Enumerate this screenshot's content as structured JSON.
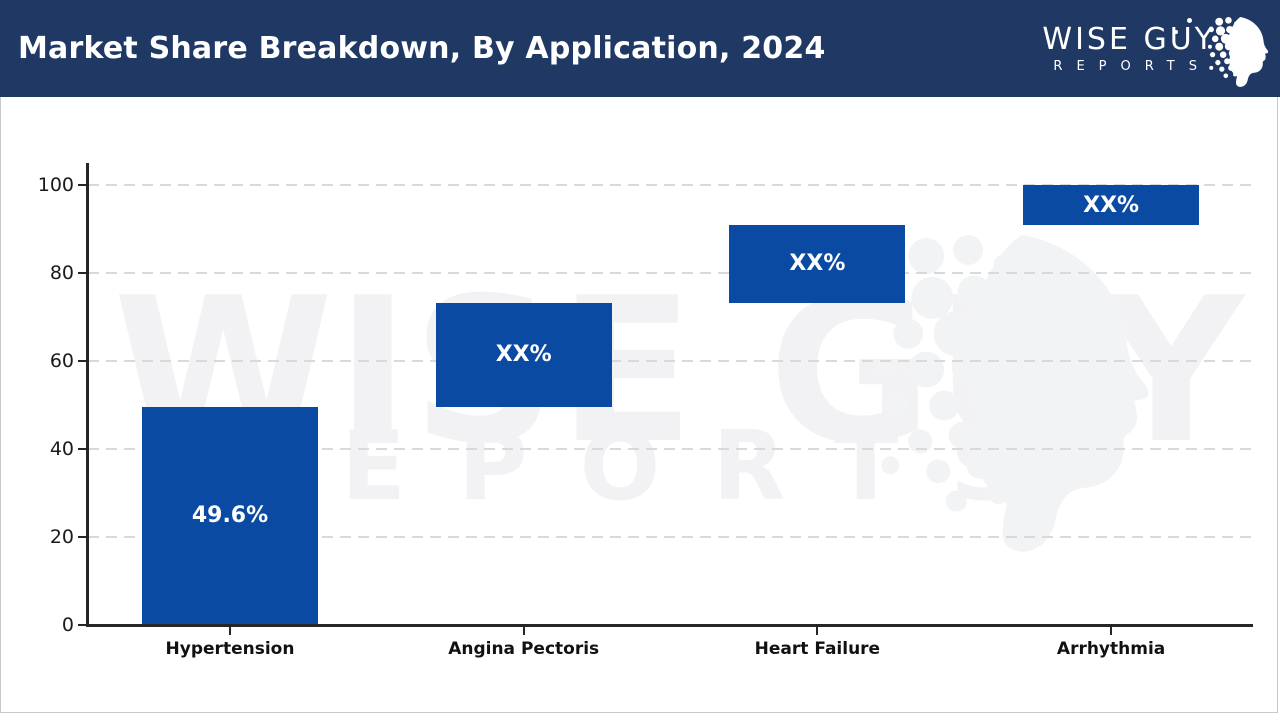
{
  "header": {
    "title": "Market Share Breakdown, By Application, 2024",
    "bg_color": "#1f3864",
    "logo": {
      "brand_top": "WISE GUY",
      "brand_bottom": "REPORTS"
    }
  },
  "watermark": {
    "text_top": "WISE GUY",
    "text_bottom": "REPORTS"
  },
  "chart_data": {
    "type": "bar",
    "subtype": "waterfall",
    "title": "Market Share Breakdown, By Application, 2024",
    "categories": [
      "Hypertension",
      "Angina Pectoris",
      "Heart Failure",
      "Arrhythmia"
    ],
    "segments": [
      {
        "category": "Hypertension",
        "start": 0,
        "end": 49.6,
        "label": "49.6%"
      },
      {
        "category": "Angina Pectoris",
        "start": 49.6,
        "end": 73.2,
        "label": "XX%"
      },
      {
        "category": "Heart Failure",
        "start": 73.2,
        "end": 90.9,
        "label": "XX%"
      },
      {
        "category": "Arrhythmia",
        "start": 90.9,
        "end": 100,
        "label": "XX%"
      }
    ],
    "ylim": [
      0,
      105
    ],
    "yticks": [
      0,
      20,
      40,
      60,
      80,
      100
    ],
    "grid": "horizontal-dashed",
    "gridline_color": "#d9d9d9",
    "bar_color": "#0b4aa2",
    "bar_label_color": "#ffffff",
    "axis_color": "#262626",
    "legend": "none"
  }
}
